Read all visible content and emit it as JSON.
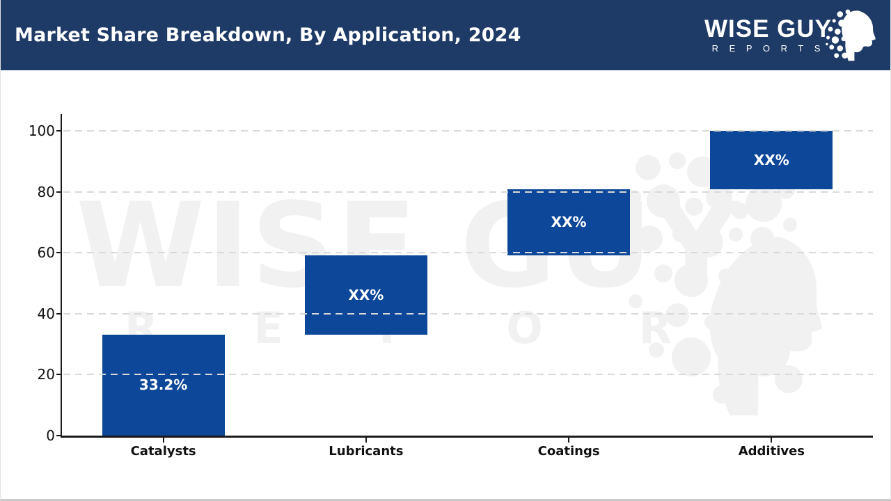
{
  "header": {
    "title": "Market Share Breakdown, By Application, 2024",
    "logo_line1": "WISE GUY",
    "logo_line2": "R E P O R T S"
  },
  "watermark": {
    "line1": "WISE GUY",
    "line2": "R E P O R T S"
  },
  "chart_data": {
    "type": "bar",
    "subtype": "waterfall",
    "title": "Market Share Breakdown, By Application, 2024",
    "categories": [
      "Catalysts",
      "Lubricants",
      "Coatings",
      "Additives"
    ],
    "segments": [
      {
        "category": "Catalysts",
        "start": 0,
        "end": 33.2,
        "label": "33.2%"
      },
      {
        "category": "Lubricants",
        "start": 33.2,
        "end": 59.2,
        "label": "XX%"
      },
      {
        "category": "Coatings",
        "start": 59.2,
        "end": 80.9,
        "label": "XX%"
      },
      {
        "category": "Additives",
        "start": 80.9,
        "end": 100,
        "label": "XX%"
      }
    ],
    "ylim": [
      0,
      100
    ],
    "yticks": [
      0,
      20,
      40,
      60,
      80,
      100
    ],
    "xlabel": "",
    "ylabel": "",
    "grid": "dashed-horizontal-above-bars",
    "legend": "none",
    "bar_color": "#0d4799",
    "bar_label_color": "#ffffff",
    "axis_color": "#1a1a1a",
    "header_color": "#1e3a66"
  }
}
